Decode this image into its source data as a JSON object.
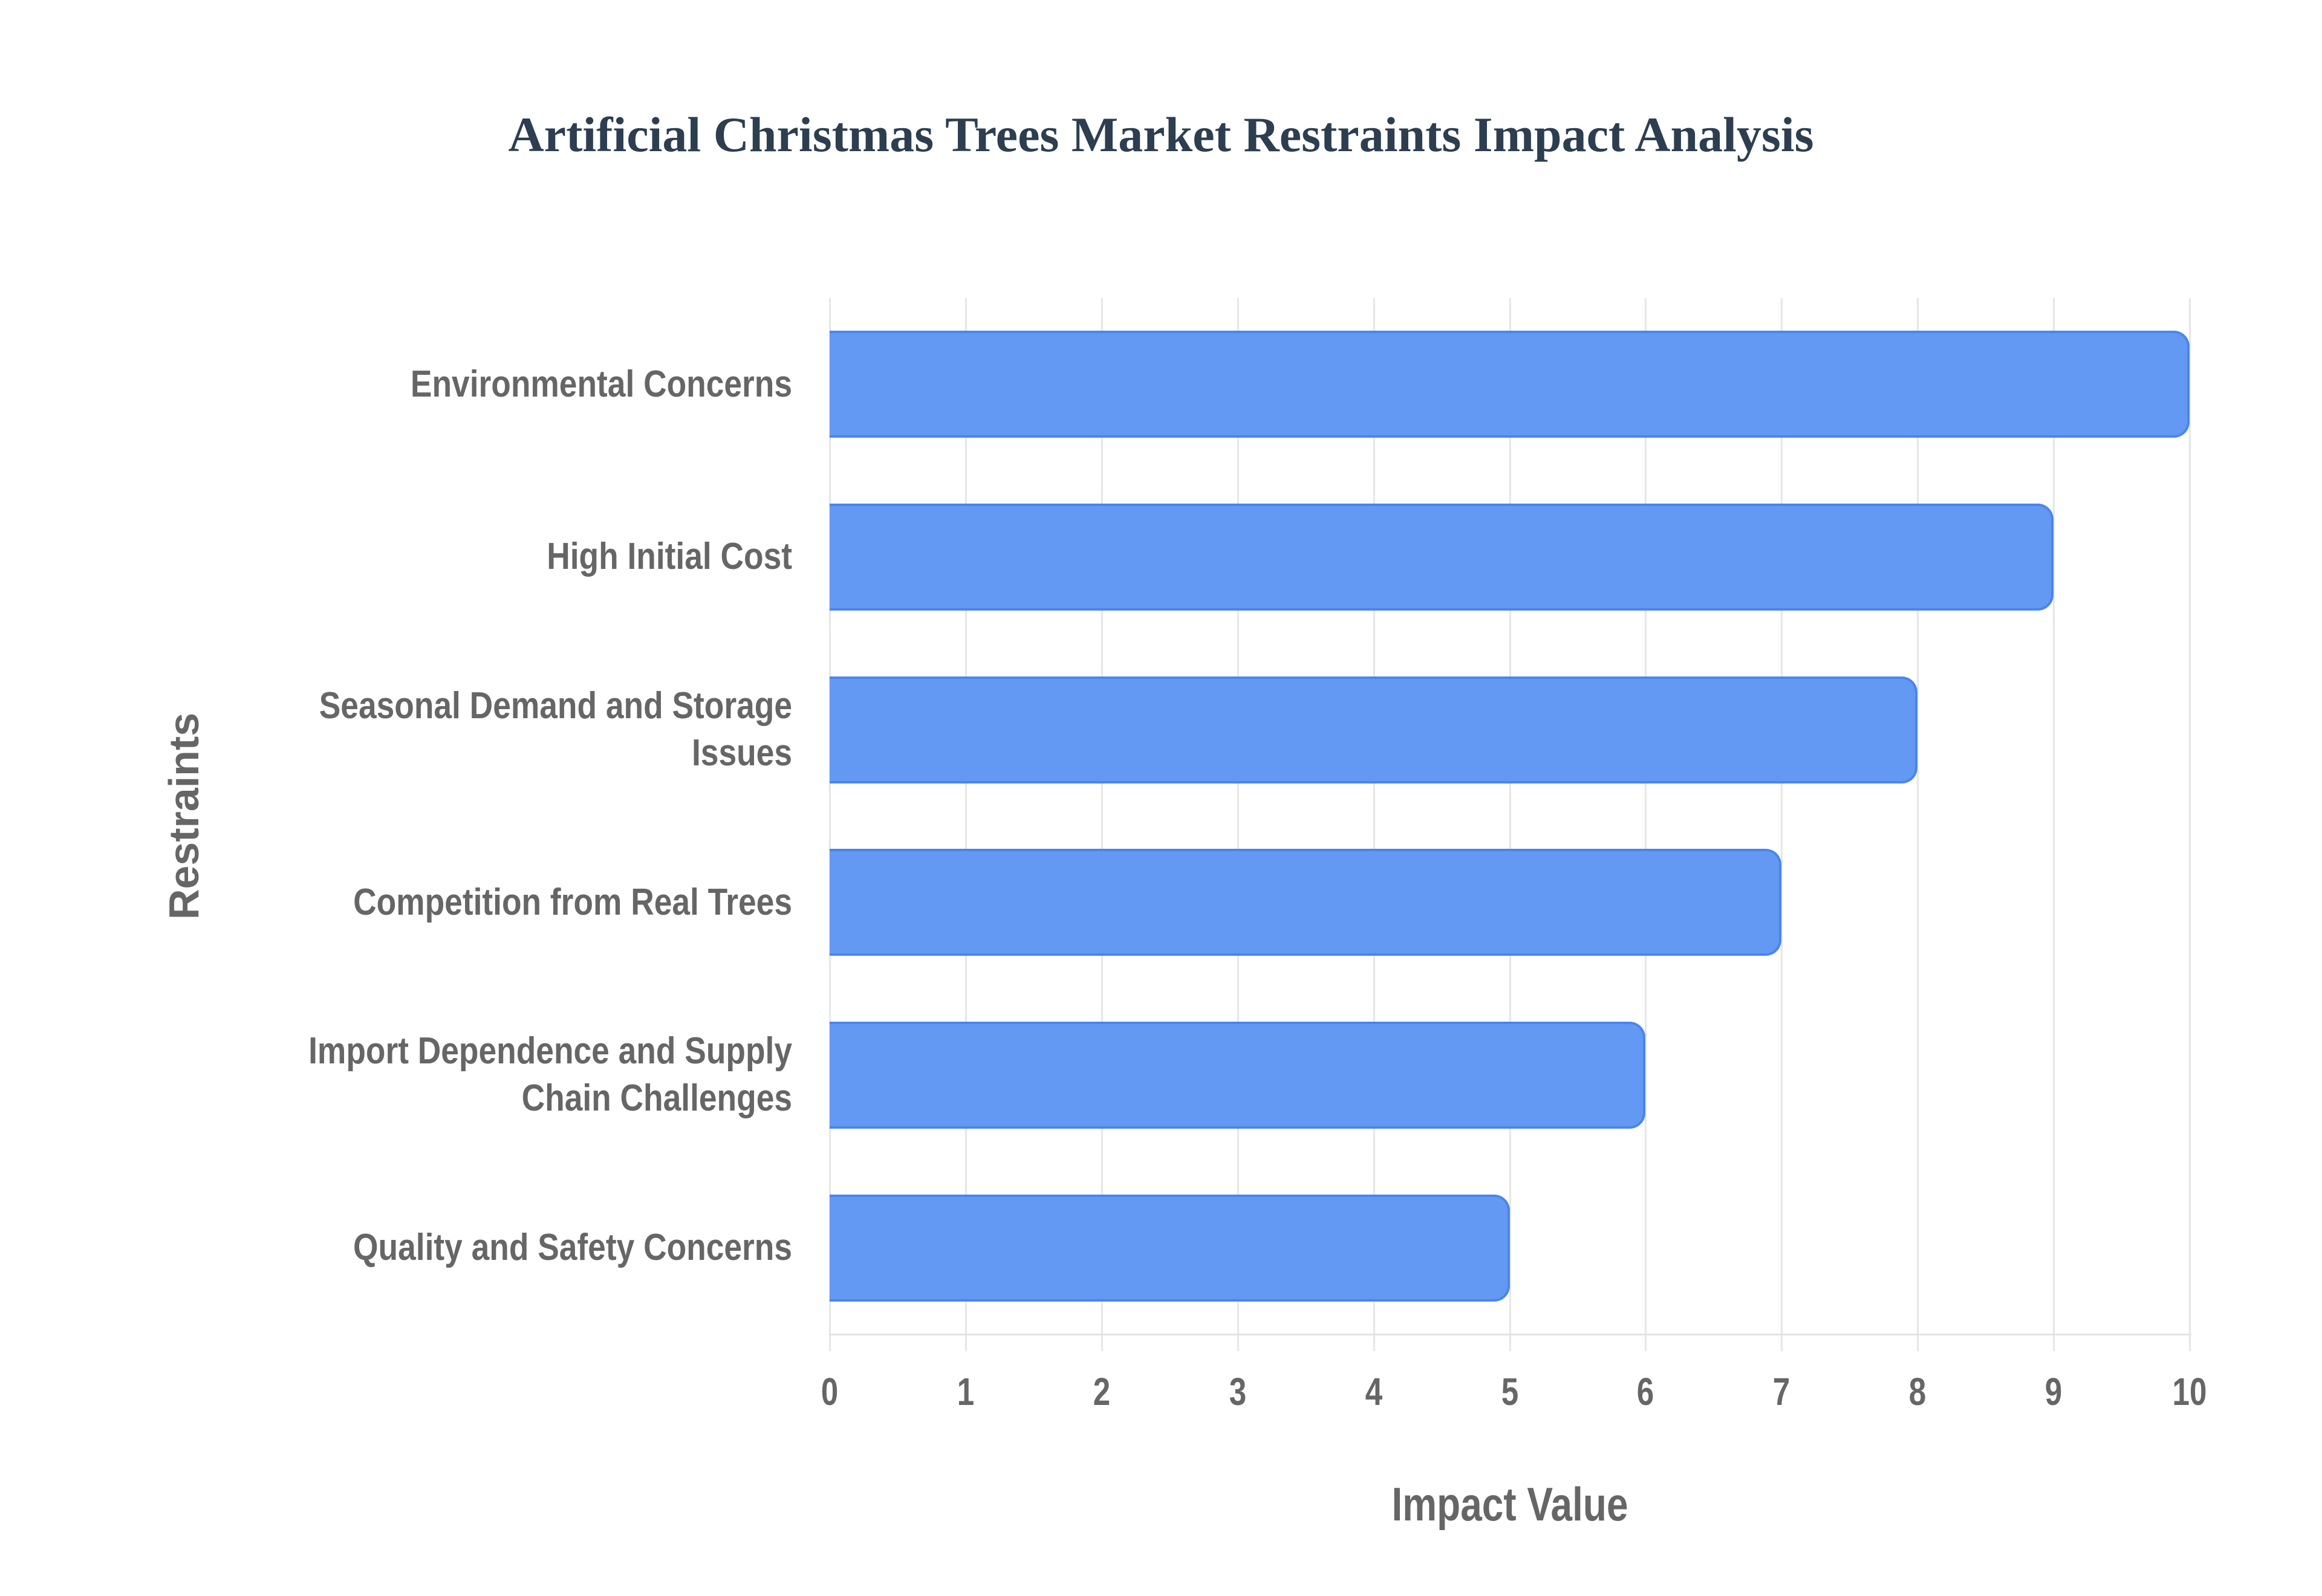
{
  "chart_data": {
    "type": "bar",
    "orientation": "horizontal",
    "title": "Artificial Christmas Trees Market Restraints Impact Analysis",
    "xlabel": "Impact Value",
    "ylabel": "Restraints",
    "categories": [
      "Environmental Concerns",
      "High Initial Cost",
      "Seasonal Demand and Storage Issues",
      "Competition from Real Trees",
      "Import Dependence and Supply Chain Challenges",
      "Quality and Safety Concerns"
    ],
    "values": [
      10,
      9,
      8,
      7,
      6,
      5
    ],
    "xlim": [
      0,
      10
    ],
    "xticks": [
      "0",
      "1",
      "2",
      "3",
      "4",
      "5",
      "6",
      "7",
      "8",
      "9",
      "10"
    ],
    "grid": true,
    "legend": null,
    "colors": {
      "bar_fill": "#6499f3",
      "bar_border": "#4a85ee",
      "title": "#2c3e50",
      "axis_text": "#666666",
      "grid": "#e6e6e6"
    }
  },
  "labels": {
    "title": "Artificial Christmas Trees Market Restraints Impact Analysis",
    "x_axis_title": "Impact Value",
    "y_axis_title": "Restraints",
    "category_lines": [
      [
        "Environmental Concerns"
      ],
      [
        "High Initial Cost"
      ],
      [
        "Seasonal Demand and Storage",
        "Issues"
      ],
      [
        "Competition from Real Trees"
      ],
      [
        "Import Dependence and Supply",
        "Chain Challenges"
      ],
      [
        "Quality and Safety Concerns"
      ]
    ]
  }
}
